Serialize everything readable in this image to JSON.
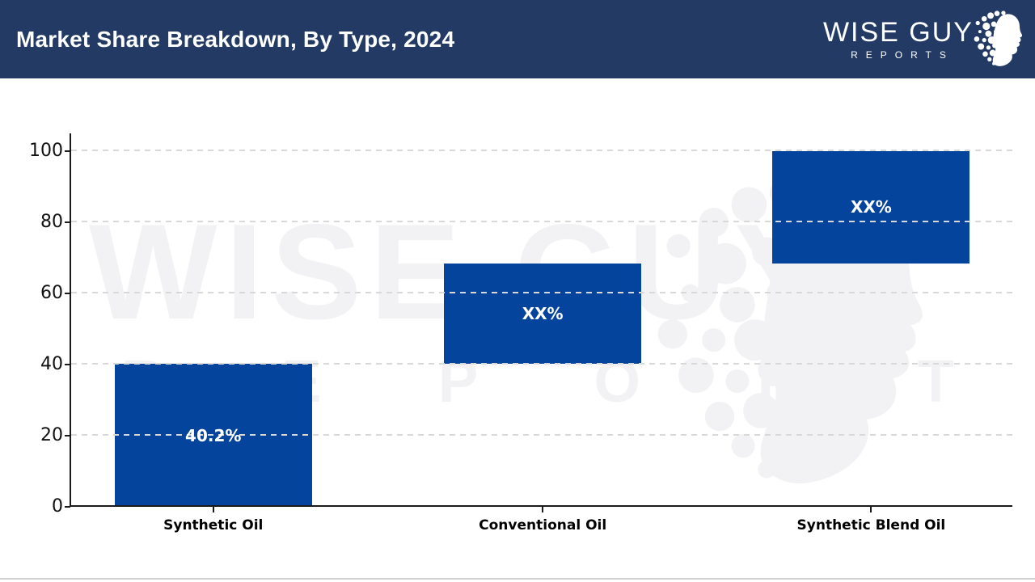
{
  "header": {
    "title": "Market Share Breakdown, By Type, 2024",
    "logo": {
      "wordmark": "WISE GUY",
      "sub": "REPORTS"
    }
  },
  "watermark": {
    "wordmark": "WISE GUY",
    "sub": "R E P O R T S"
  },
  "chart_data": {
    "type": "bar",
    "variant": "floating-segment-waterfall",
    "title": "Market Share Breakdown, By Type, 2024",
    "categories": [
      "Synthetic Oil",
      "Conventional Oil",
      "Synthetic Blend Oil"
    ],
    "segments": [
      {
        "category": "Synthetic Oil",
        "start": 0,
        "end": 40.2,
        "label": "40.2%"
      },
      {
        "category": "Conventional Oil",
        "start": 40.2,
        "end": 68.5,
        "label": "XX%"
      },
      {
        "category": "Synthetic Blend Oil",
        "start": 68.5,
        "end": 100,
        "label": "XX%"
      }
    ],
    "xlabel": "",
    "ylabel": "",
    "yticks": [
      0,
      20,
      40,
      60,
      80,
      100
    ],
    "ylim": [
      0,
      105
    ],
    "grid": "horizontal-dashed",
    "legend": "none",
    "colors": {
      "bar": "#04449C",
      "bar_label_text": "#FFFFFF",
      "gridline": "#D8D8D8",
      "axis": "#1A1A1A",
      "header_bg": "#223A64",
      "header_text": "#FFFFFF",
      "watermark": "#F2F2F4"
    }
  }
}
